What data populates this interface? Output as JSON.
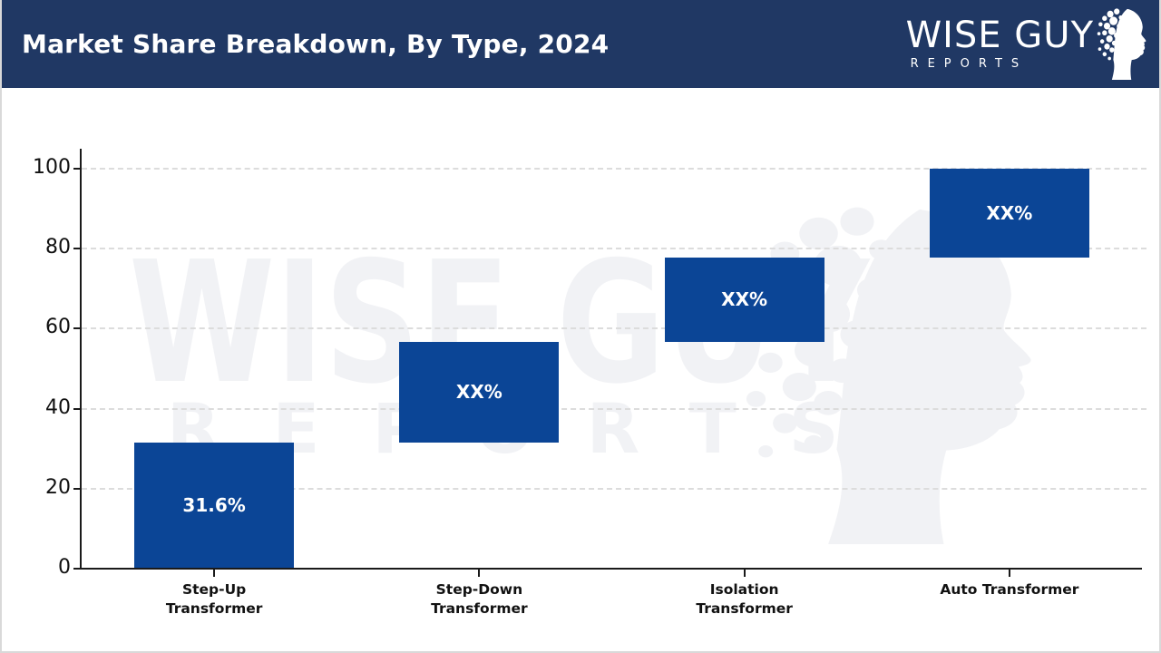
{
  "header": {
    "title": "Market Share Breakdown, By Type, 2024",
    "bg_color": "#203864",
    "logo": {
      "line1": "WISE GUY",
      "line2": "REPORTS"
    }
  },
  "watermark": {
    "line1": "WISE GUY",
    "line2": "REPORTS"
  },
  "chart_data": {
    "type": "bar",
    "variant": "waterfall-stepped",
    "title": "Market Share Breakdown, By Type, 2024",
    "categories": [
      "Step-Up\nTransformer",
      "Step-Down\nTransformer",
      "Isolation\nTransformer",
      "Auto Transformer"
    ],
    "segments": [
      {
        "label": "31.6%",
        "start": 0,
        "end": 31.6
      },
      {
        "label": "XX%",
        "start": 31.6,
        "end": 56.8
      },
      {
        "label": "XX%",
        "start": 56.8,
        "end": 77.7
      },
      {
        "label": "XX%",
        "start": 77.7,
        "end": 100
      }
    ],
    "yticks": [
      0,
      20,
      40,
      60,
      80,
      100
    ],
    "ylim": [
      0,
      105
    ],
    "bar_color": "#0b4596",
    "grid": "horizontal-dashed",
    "grid_color": "#dcdcdc",
    "axis_color": "#1a1a1a",
    "legend": "none"
  }
}
